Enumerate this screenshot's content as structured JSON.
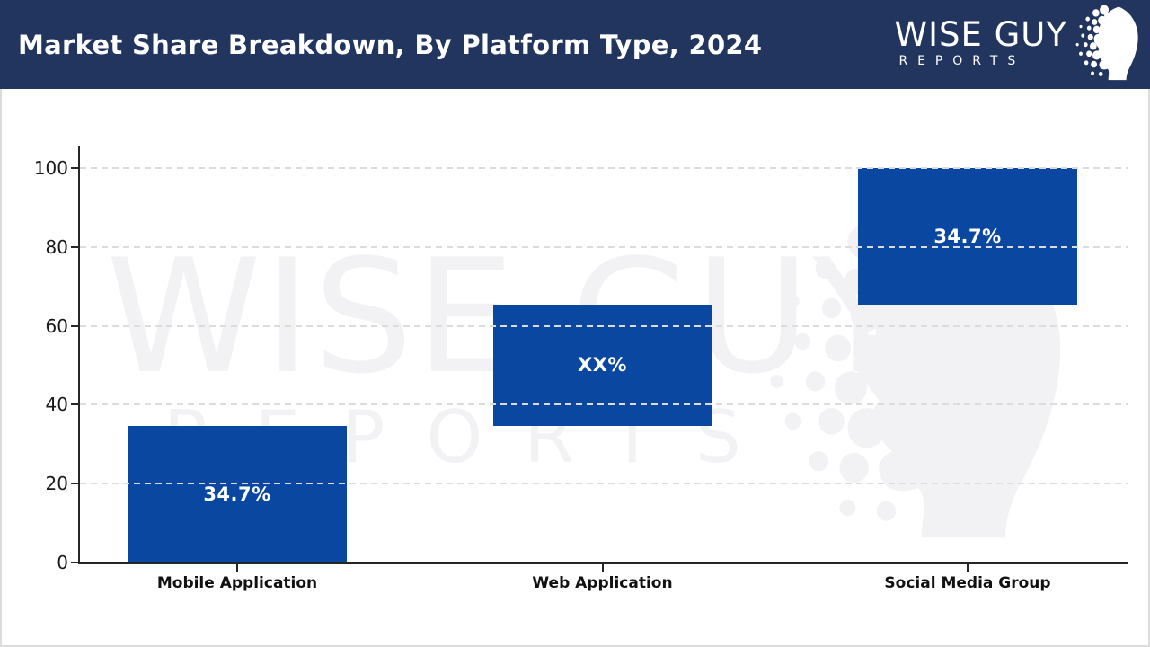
{
  "header": {
    "title": "Market Share Breakdown, By Platform Type, 2024",
    "background_color": "#21355F",
    "logo": {
      "line1": "WISE GUY",
      "line2": "REPORTS"
    }
  },
  "watermark": {
    "line1": "WISE GUY",
    "line2": "REPORTS"
  },
  "chart_data": {
    "type": "bar",
    "subtype": "floating_segment_waterfall",
    "title": "Market Share Breakdown, By Platform Type, 2024",
    "categories": [
      "Mobile Application",
      "Web Application",
      "Social Media Group"
    ],
    "segments": [
      {
        "category": "Mobile Application",
        "start": 0,
        "end": 34.7,
        "label": "34.7%"
      },
      {
        "category": "Web Application",
        "start": 34.7,
        "end": 65.3,
        "label": "XX%"
      },
      {
        "category": "Social Media Group",
        "start": 65.3,
        "end": 100,
        "label": "34.7%"
      }
    ],
    "ylim": [
      0,
      100
    ],
    "yticks": [
      0,
      20,
      40,
      60,
      80,
      100
    ],
    "xlabel": "",
    "ylabel": "",
    "grid": {
      "axis": "y",
      "style": "dashed",
      "color": "#dcdcdc"
    },
    "legend": null,
    "bar_color": "#0A47A1",
    "bar_label_color": "#ffffff",
    "axis_color": "#262626"
  }
}
